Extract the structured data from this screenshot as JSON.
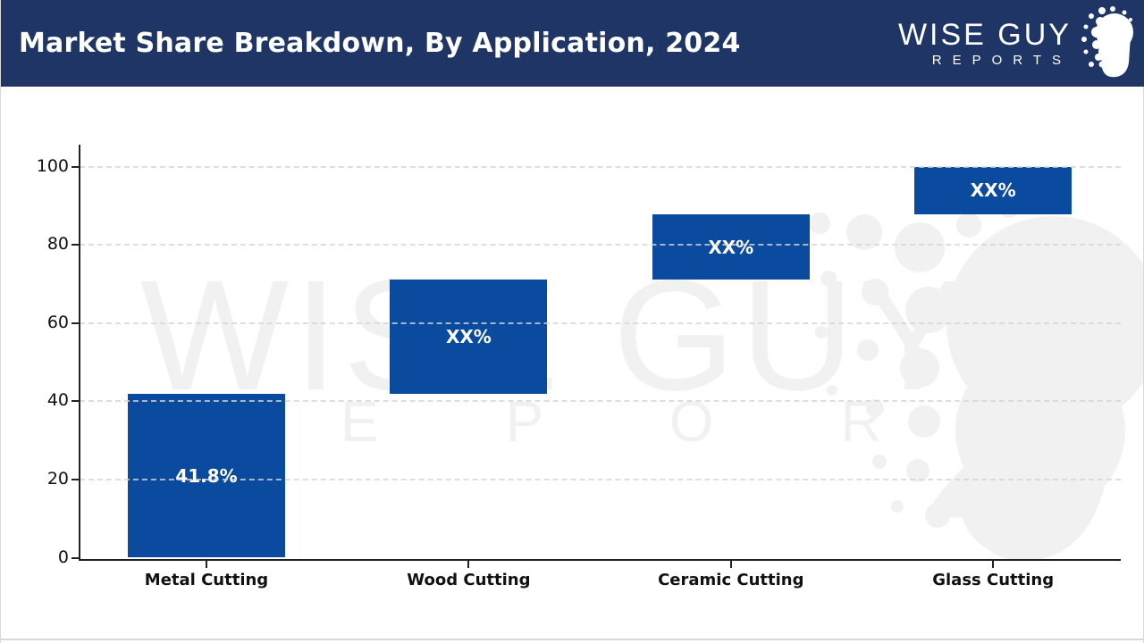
{
  "header": {
    "title": "Market Share Breakdown, By Application, 2024",
    "logo": {
      "line1": "WISE GUY",
      "line2": "REPORTS"
    }
  },
  "watermark": {
    "line1": "WISE GUY",
    "line2": "R E P O R T S"
  },
  "colors": {
    "header_bg": "#1e3565",
    "bar": "#0a4a9f",
    "grid": "#d5d5d5",
    "axis": "#222222",
    "watermark": "#f1f1f1",
    "bar_label_text": "#ffffff"
  },
  "chart_data": {
    "type": "bar",
    "subtype": "waterfall",
    "title": "Market Share Breakdown, By Application, 2024",
    "xlabel": "",
    "ylabel": "",
    "categories": [
      "Metal Cutting",
      "Wood Cutting",
      "Ceramic Cutting",
      "Glass Cutting"
    ],
    "segments": [
      {
        "category": "Metal Cutting",
        "start": 0,
        "end": 41.8,
        "label": "41.8%"
      },
      {
        "category": "Wood Cutting",
        "start": 41.8,
        "end": 71.1,
        "label": "XX%"
      },
      {
        "category": "Ceramic Cutting",
        "start": 71.1,
        "end": 87.8,
        "label": "XX%"
      },
      {
        "category": "Glass Cutting",
        "start": 87.8,
        "end": 100,
        "label": "XX%"
      }
    ],
    "yticks": [
      0,
      20,
      40,
      60,
      80,
      100
    ],
    "ylim": [
      0,
      105
    ],
    "grid": "horizontal-dashed",
    "legend": "none"
  }
}
